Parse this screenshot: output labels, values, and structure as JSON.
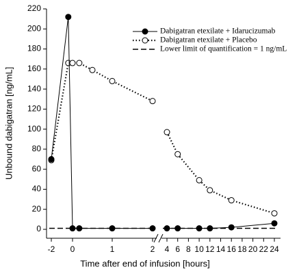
{
  "chart_data": {
    "type": "line",
    "y_label": "Unbound dabigatran [ng/mL]",
    "x_label": "Time after end of infusion [hours]",
    "ylim": [
      0,
      220
    ],
    "yticks": [
      0,
      20,
      40,
      60,
      80,
      100,
      120,
      140,
      160,
      180,
      200,
      220
    ],
    "x_segments": [
      {
        "xlim": [
          -2,
          2
        ],
        "xticks": [
          -2,
          0,
          1,
          2
        ]
      },
      {
        "xlim": [
          4,
          24
        ],
        "xticks": [
          4,
          6,
          8,
          10,
          12,
          14,
          16,
          18,
          20,
          22,
          24
        ]
      }
    ],
    "series": [
      {
        "name": "Dabigatran etexilate + Idarucizumab",
        "color": "#000000",
        "marker": "filled",
        "line": "solid",
        "x": [
          -2,
          -0.4,
          0,
          0.17,
          1,
          2,
          4,
          6,
          10,
          12,
          16,
          24
        ],
        "values": [
          70,
          212,
          1,
          1,
          1,
          1,
          1,
          1,
          1,
          1,
          2,
          6
        ]
      },
      {
        "name": "Dabigatran etexilate + Placebo",
        "color": "#000000",
        "marker": "open",
        "line": "dotted",
        "x": [
          -2,
          -0.4,
          0,
          0.17,
          0.5,
          1,
          2,
          4,
          6,
          10,
          12,
          16,
          24
        ],
        "values": [
          69,
          166,
          166,
          166,
          159,
          148,
          128,
          97,
          75,
          49,
          39,
          29,
          16
        ]
      }
    ],
    "reference_lines": [
      {
        "name": "Lower limit of quantification = 1 ng/mL",
        "value": 1,
        "line": "dashed"
      }
    ]
  }
}
